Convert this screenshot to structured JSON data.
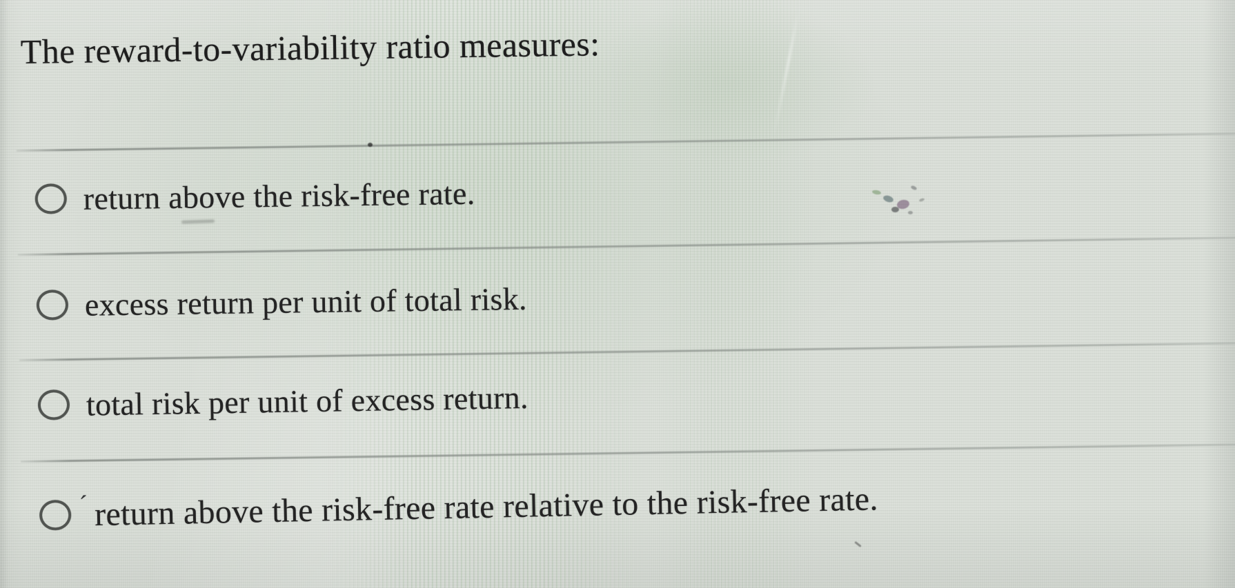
{
  "page": {
    "kind": "multiple-choice-question"
  },
  "question": {
    "title": "The reward-to-variability ratio measures:",
    "options": [
      {
        "label": "return above the risk-free rate.",
        "selected": false
      },
      {
        "label": "excess return per unit of total risk.",
        "selected": false
      },
      {
        "label": "total risk per unit of excess return.",
        "selected": false
      },
      {
        "label": "return above the risk-free rate relative to the risk-free rate.",
        "selected": false
      }
    ]
  },
  "artifacts": {
    "accent_mark_before_option_4": "´"
  },
  "colors": {
    "bg": "#d8ddd6",
    "text": "#242424",
    "title_text": "#1e1e1e",
    "divider": "#8b918c",
    "radio_border": "#3a3d3a",
    "moire_green": "#7fa87a"
  }
}
